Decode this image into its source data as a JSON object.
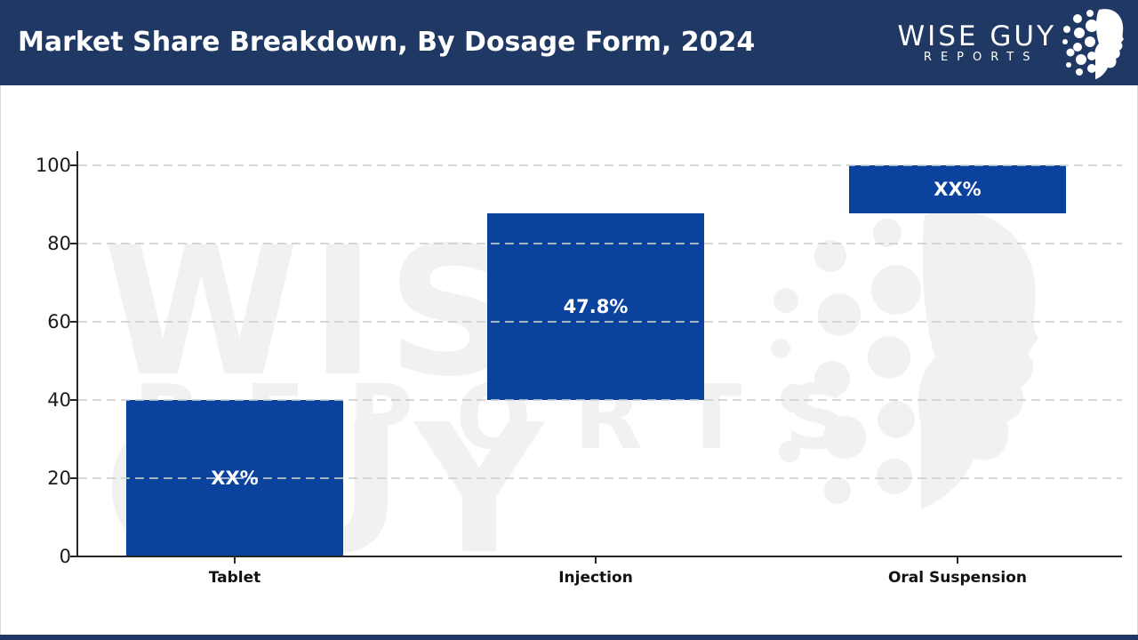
{
  "header": {
    "title": "Market Share Breakdown, By Dosage Form, 2024",
    "bg_color": "#1f3864",
    "logo": {
      "line1": "WISE GUY",
      "line2": "REPORTS"
    }
  },
  "watermark": {
    "line1": "WISE GUY",
    "line2": "REPORTS"
  },
  "chart_data": {
    "type": "bar",
    "subtype": "waterfall",
    "title": "Market Share Breakdown, By Dosage Form, 2024",
    "categories": [
      "Tablet",
      "Injection",
      "Oral Suspension"
    ],
    "segments": [
      {
        "category": "Tablet",
        "start": 0,
        "end": 40,
        "label": "XX%"
      },
      {
        "category": "Injection",
        "start": 40,
        "end": 87.8,
        "label": "47.8%"
      },
      {
        "category": "Oral Suspension",
        "start": 87.8,
        "end": 100,
        "label": "XX%"
      }
    ],
    "ylim": [
      0,
      100
    ],
    "yticks": [
      0,
      20,
      40,
      60,
      80,
      100
    ],
    "xlabel": "",
    "ylabel": "",
    "bar_color": "#0a429e",
    "grid": true,
    "grid_style": "dashed",
    "legend_position": "none"
  }
}
